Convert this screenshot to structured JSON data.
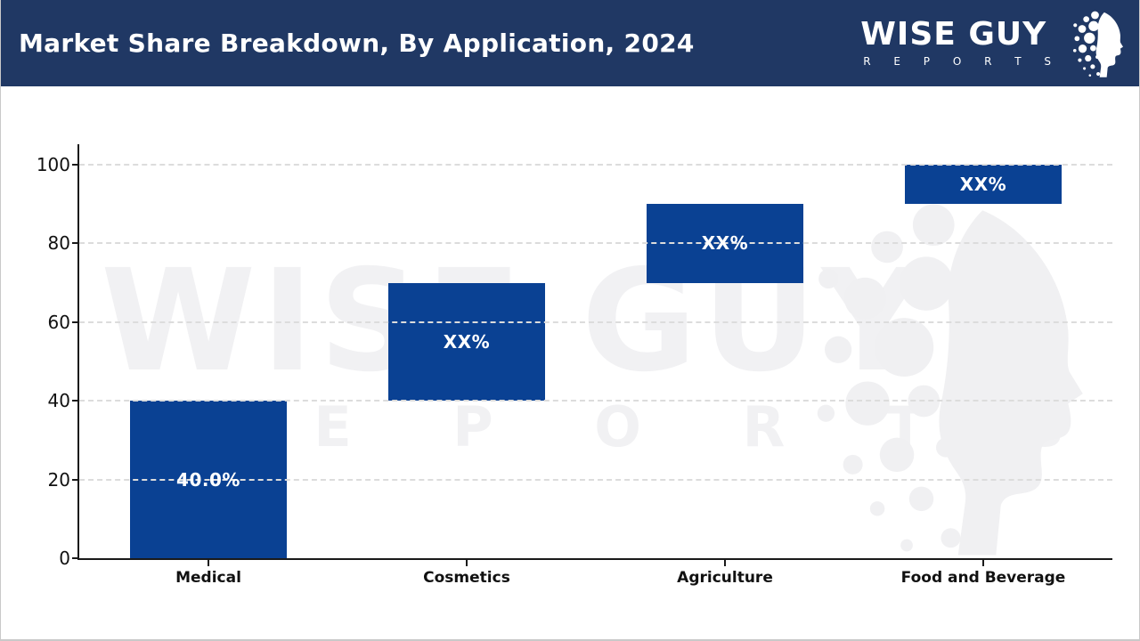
{
  "header": {
    "title": "Market Share Breakdown, By Application, 2024",
    "logo": {
      "line1": "WISE GUY",
      "line2": "R E P O R T S"
    }
  },
  "watermark": {
    "line1": "WISE GUY",
    "line2": "R E P O R T S"
  },
  "chart_data": {
    "type": "bar",
    "subtype": "floating-waterfall-segments",
    "title": "Market Share Breakdown, By Application, 2024",
    "categories": [
      "Medical",
      "Cosmetics",
      "Agriculture",
      "Food and Beverage"
    ],
    "segments": [
      {
        "category": "Medical",
        "start": 0,
        "end": 40,
        "label": "40.0%"
      },
      {
        "category": "Cosmetics",
        "start": 40,
        "end": 70,
        "label": "XX%"
      },
      {
        "category": "Agriculture",
        "start": 70,
        "end": 90,
        "label": "XX%"
      },
      {
        "category": "Food and Beverage",
        "start": 90,
        "end": 100,
        "label": "XX%"
      }
    ],
    "yticks": [
      0,
      20,
      40,
      60,
      80,
      100
    ],
    "ylim": [
      0,
      105
    ],
    "xlabel": "",
    "ylabel": "",
    "grid": "horizontal-dashed-above-bars",
    "legend": "none",
    "bar_color": "#0a4193",
    "bar_label_color": "#ffffff"
  },
  "colors": {
    "header_bg": "#203864",
    "header_text": "#ffffff",
    "bar": "#0a4193",
    "gridline": "#dcdcdc",
    "axis": "#1a1a1a",
    "tick_text": "#111111",
    "watermark": "#f1f1f3",
    "frame_border": "#c9c9c9",
    "background": "#ffffff"
  }
}
